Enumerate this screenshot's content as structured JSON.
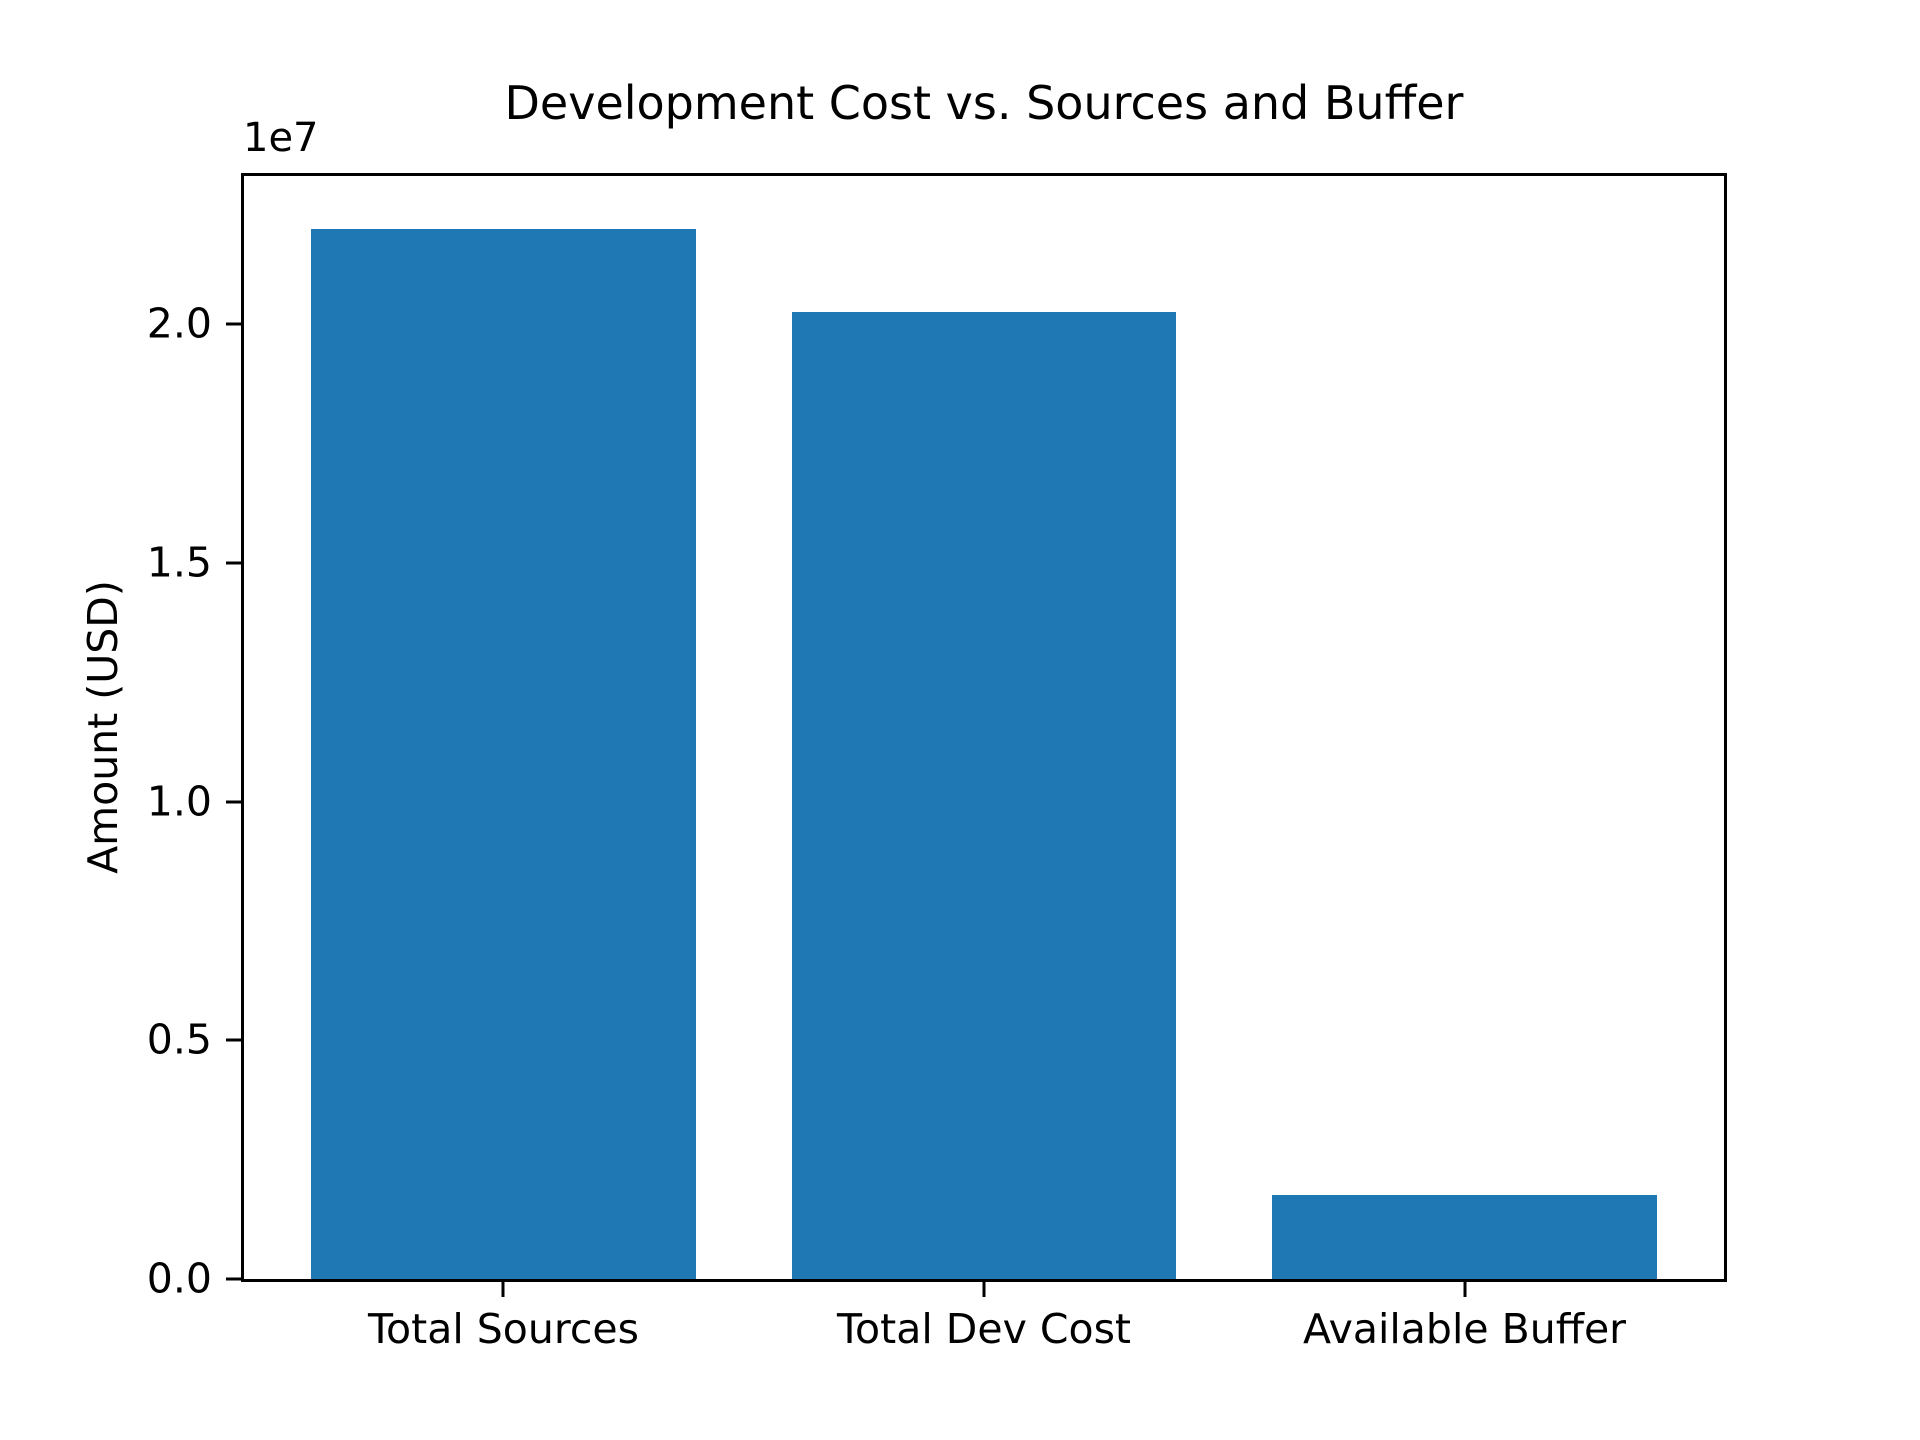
{
  "chart_data": {
    "type": "bar",
    "title": "Development Cost vs. Sources and Buffer",
    "ylabel": "Amount (USD)",
    "y_offset_label": "1e7",
    "categories": [
      "Total Sources",
      "Total Dev Cost",
      "Available Buffer"
    ],
    "values": [
      22000000,
      20250000,
      1750000
    ],
    "bar_color": "#1f77b4",
    "ylim": [
      0,
      23100000
    ],
    "yticks": [
      0,
      5000000,
      10000000,
      15000000,
      20000000
    ],
    "ytick_labels": [
      "0.0",
      "0.5",
      "1.0",
      "1.5",
      "2.0"
    ],
    "bar_width": 0.8,
    "grid": false,
    "legend_position": "none"
  }
}
